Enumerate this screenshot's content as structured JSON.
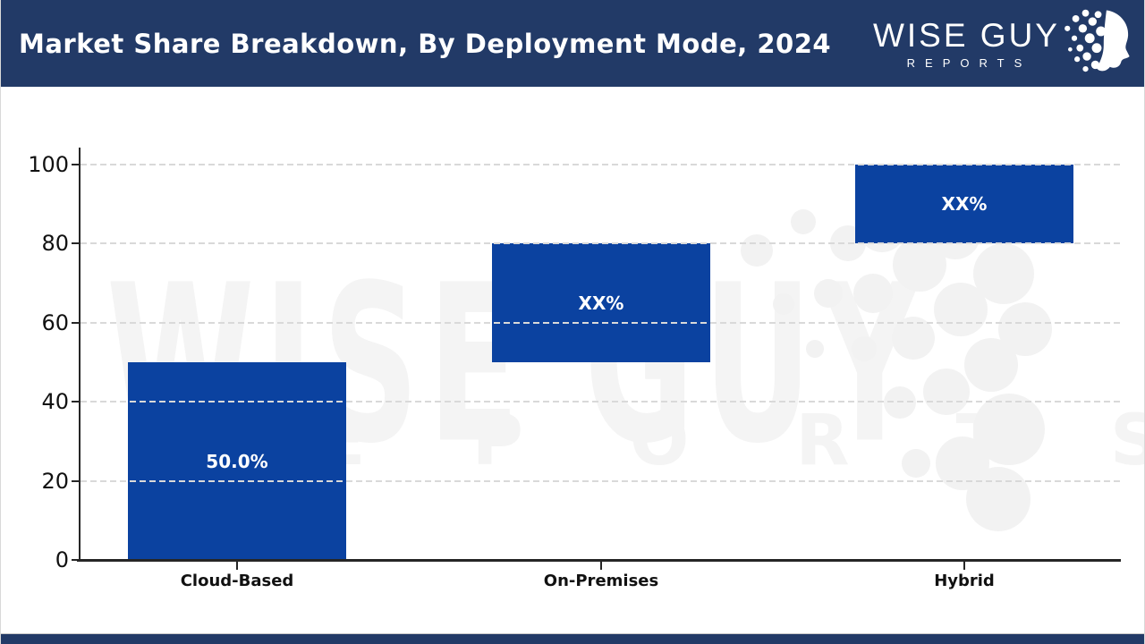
{
  "header": {
    "title": "Market Share Breakdown, By Deployment Mode, 2024",
    "logo": {
      "line1": "WISE GUY",
      "line2": "REPORTS"
    }
  },
  "watermark": {
    "line1": "WISE GUY",
    "line2": "REPORTS"
  },
  "chart_data": {
    "type": "bar",
    "variant": "waterfall",
    "title": "Market Share Breakdown, By Deployment Mode, 2024",
    "categories": [
      "Cloud-Based",
      "On-Premises",
      "Hybrid"
    ],
    "segments": [
      {
        "category": "Cloud-Based",
        "start": 0,
        "end": 50,
        "label": "50.0%"
      },
      {
        "category": "On-Premises",
        "start": 50,
        "end": 80,
        "label": "XX%"
      },
      {
        "category": "Hybrid",
        "start": 80,
        "end": 100,
        "label": "XX%"
      }
    ],
    "xlabel": "",
    "ylabel": "",
    "ylim": [
      0,
      100
    ],
    "y_ticks": [
      0,
      20,
      40,
      60,
      80,
      100
    ],
    "grid": {
      "axis": "y",
      "style": "dashed",
      "color": "#d9d9d9"
    },
    "legend": "none",
    "bar_color": "#0b42a0",
    "bar_label_color": "#ffffff",
    "axis_color": "#262626",
    "tick_label_color": "#111111",
    "header_color": "#223a67",
    "watermark_color": "#f4f4f4"
  }
}
